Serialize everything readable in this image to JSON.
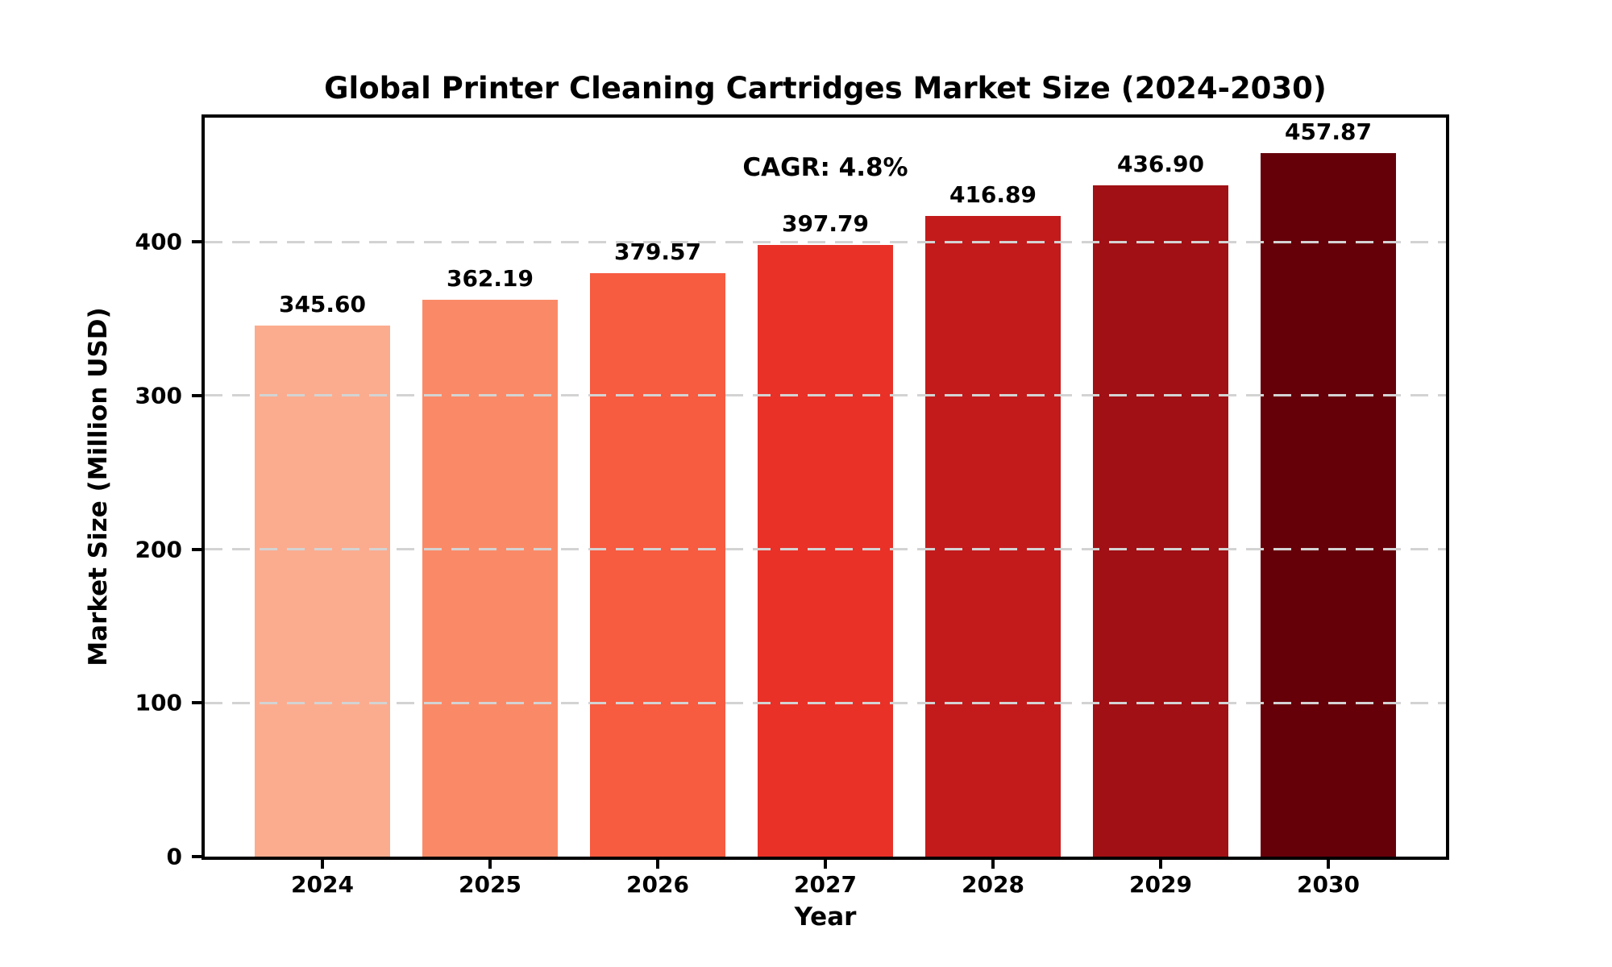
{
  "chart_data": {
    "type": "bar",
    "title": "Global Printer Cleaning Cartridges Market Size (2024-2030)",
    "annotation": "CAGR: 4.8%",
    "xlabel": "Year",
    "ylabel": "Market Size (Million USD)",
    "categories": [
      "2024",
      "2025",
      "2026",
      "2027",
      "2028",
      "2029",
      "2030"
    ],
    "values": [
      345.6,
      362.19,
      379.57,
      397.79,
      416.89,
      436.9,
      457.87
    ],
    "value_labels": [
      "345.60",
      "362.19",
      "379.57",
      "397.79",
      "416.89",
      "436.90",
      "457.87"
    ],
    "bar_colors": [
      "#fbac8f",
      "#fa8a67",
      "#f75b40",
      "#e93128",
      "#c31b1c",
      "#a01014",
      "#650009"
    ],
    "yticks": [
      0,
      100,
      200,
      300,
      400
    ],
    "ylim": [
      0,
      480.8
    ],
    "grid": "horizontal-dashed",
    "legend": "none",
    "colors": {
      "spine": "#000000",
      "grid": "#d3d3d3",
      "text": "#000000",
      "background": "#ffffff"
    }
  }
}
